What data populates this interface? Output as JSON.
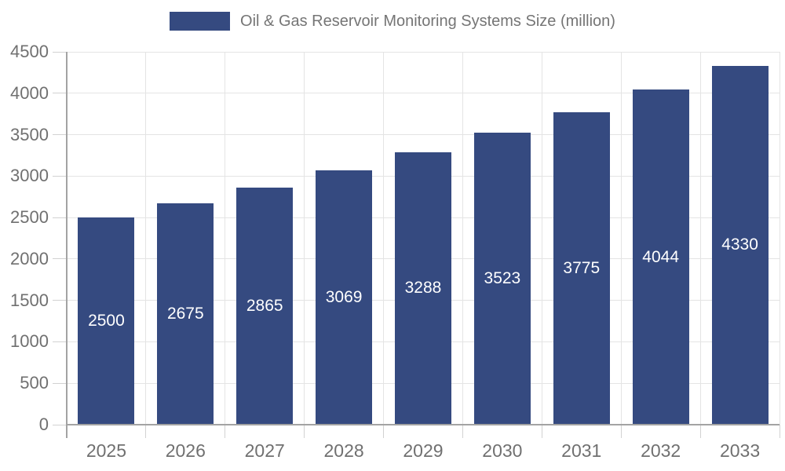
{
  "chart_data": {
    "type": "bar",
    "title": "Oil & Gas Reservoir Monitoring Systems Size (million)",
    "categories": [
      "2025",
      "2026",
      "2027",
      "2028",
      "2029",
      "2030",
      "2031",
      "2032",
      "2033"
    ],
    "values": [
      2500,
      2675,
      2865,
      3069,
      3288,
      3523,
      3775,
      4044,
      4330
    ],
    "xlabel": "",
    "ylabel": "",
    "ylim": [
      0,
      4500
    ],
    "y_ticks": [
      0,
      500,
      1000,
      1500,
      2000,
      2500,
      3000,
      3500,
      4000,
      4500
    ],
    "grid": true,
    "legend_position": "top",
    "bar_value_labels_inside": true,
    "colors": {
      "bar": "#354A80",
      "bar_label": "#FFFFFF",
      "axis_text": "#707070",
      "legend_text": "#757575",
      "gridline": "#E4E4E4",
      "axis_line": "#A3A3A3",
      "tick": "#D2D2D2"
    }
  }
}
